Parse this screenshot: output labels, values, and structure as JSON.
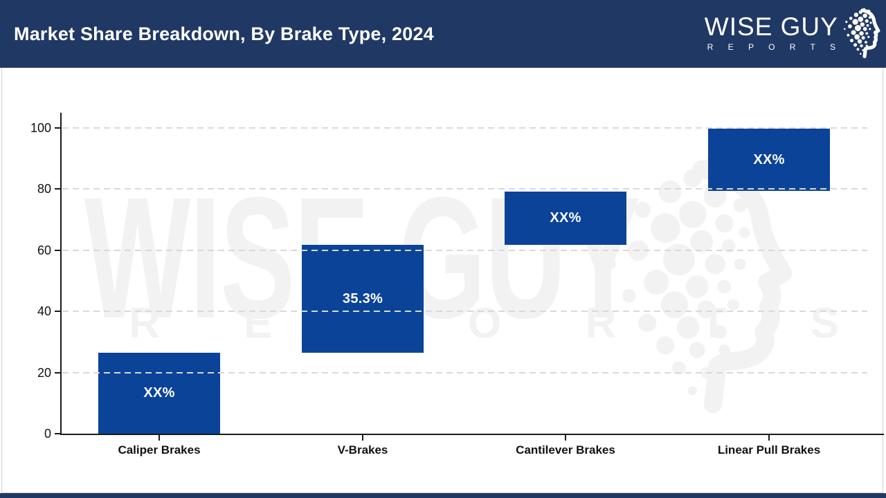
{
  "header": {
    "title": "Market Share Breakdown, By Brake Type, 2024",
    "logo": {
      "line1": "WISE GUY",
      "line2": "R E P O R T S"
    }
  },
  "watermark": {
    "line1": "WISE GUY",
    "line2": "R E P O R T S"
  },
  "chart_data": {
    "type": "bar",
    "subtype": "floating-waterfall",
    "title": "Market Share Breakdown, By Brake Type, 2024",
    "categories": [
      "Caliper Brakes",
      "V-Brakes",
      "Cantilever Brakes",
      "Linear Pull Brakes"
    ],
    "series": [
      {
        "name": "Market Share (%)",
        "segments": [
          {
            "category": "Caliper Brakes",
            "start": 0,
            "end": 26.5,
            "label": "XX%"
          },
          {
            "category": "V-Brakes",
            "start": 26.5,
            "end": 61.8,
            "label": "35.3%"
          },
          {
            "category": "Cantilever Brakes",
            "start": 61.8,
            "end": 79.2,
            "label": "XX%"
          },
          {
            "category": "Linear Pull Brakes",
            "start": 79.4,
            "end": 99.8,
            "label": "XX%"
          }
        ]
      }
    ],
    "xlabel": "",
    "ylabel": "",
    "ylim": [
      0,
      105
    ],
    "yticks": [
      0,
      20,
      40,
      60,
      80,
      100
    ],
    "grid": "horizontal-dashed",
    "legend": "none"
  },
  "colors": {
    "header_bg": "#203864",
    "footer_bg": "#203864",
    "bar_fill": "#0b4398",
    "gridline": "#d9d9d9",
    "watermark": "#f2f2f2"
  }
}
